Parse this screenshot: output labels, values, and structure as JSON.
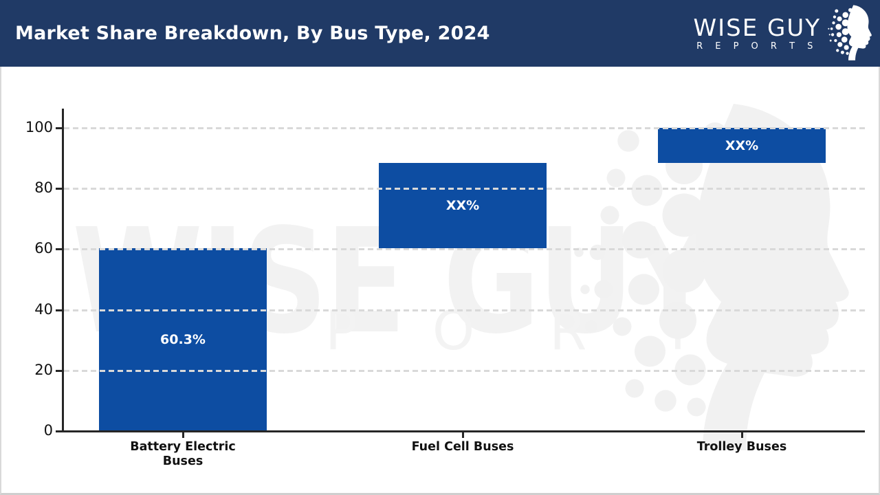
{
  "header": {
    "title": "Market Share Breakdown, By Bus Type, 2024",
    "logo": {
      "name": "WISE GUY",
      "subname": "R E P O R T S"
    }
  },
  "watermark": {
    "line1": "WISE GUY",
    "line2": "R E P O R T S"
  },
  "chart_data": {
    "type": "bar",
    "subtype": "floating-waterfall",
    "title": "Market Share Breakdown, By Bus Type, 2024",
    "categories": [
      "Battery Electric Buses",
      "Fuel Cell Buses",
      "Trolley Buses"
    ],
    "category_lines": [
      [
        "Battery Electric",
        "Buses"
      ],
      [
        "Fuel Cell Buses"
      ],
      [
        "Trolley Buses"
      ]
    ],
    "series": [
      {
        "name": "Market share (%)",
        "segments": [
          {
            "category": "Battery Electric Buses",
            "label": "60.3%",
            "start": 0,
            "end": 60.3
          },
          {
            "category": "Fuel Cell Buses",
            "label": "XX%",
            "start": 60.3,
            "end": 88.4
          },
          {
            "category": "Trolley Buses",
            "label": "XX%",
            "start": 88.4,
            "end": 100
          }
        ]
      }
    ],
    "yticks": [
      0,
      20,
      40,
      60,
      80,
      100
    ],
    "ylim": [
      0,
      106
    ],
    "xlabel": "",
    "ylabel": "",
    "legend": "none",
    "grid": "horizontal-dashed",
    "grid_above_bars": true,
    "colors": {
      "bar": "#0d4da2",
      "bar_label": "#ffffff",
      "axis": "#262626",
      "grid": "#d9d9d9",
      "header_bg": "#203a66",
      "watermark": "#f1f1f1"
    }
  }
}
